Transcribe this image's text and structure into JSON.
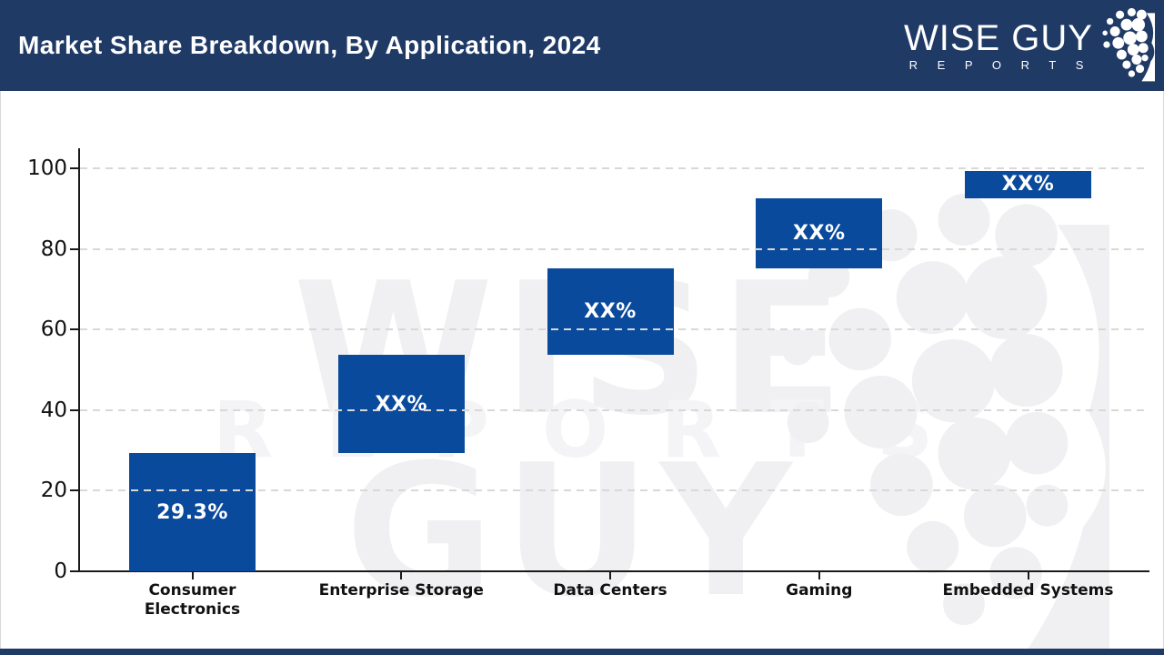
{
  "header": {
    "title": "Market Share Breakdown, By Application, 2024",
    "background_color": "#203a66",
    "logo": {
      "name": "WISE GUY",
      "tagline": "R E P O R T S"
    }
  },
  "watermark": {
    "line1": "WISE GUY",
    "line2": "REPORTS"
  },
  "chart_data": {
    "type": "bar",
    "variant": "waterfall-floating-bars",
    "title": "Market Share Breakdown, By Application, 2024",
    "categories": [
      "Consumer\nElectronics",
      "Enterprise Storage",
      "Data Centers",
      "Gaming",
      "Embedded Systems"
    ],
    "bars": [
      {
        "category": "Consumer Electronics",
        "start": 0,
        "end": 29.3,
        "label": "29.3%"
      },
      {
        "category": "Enterprise Storage",
        "start": 29.3,
        "end": 53.7,
        "label": "XX%"
      },
      {
        "category": "Data Centers",
        "start": 53.7,
        "end": 75.2,
        "label": "XX%"
      },
      {
        "category": "Gaming",
        "start": 75.2,
        "end": 92.6,
        "label": "XX%"
      },
      {
        "category": "Embedded Systems",
        "start": 92.6,
        "end": 99.4,
        "label": "XX%"
      }
    ],
    "yticks": [
      0,
      20,
      40,
      60,
      80,
      100
    ],
    "ylim": [
      0,
      100
    ],
    "xlabel": "",
    "ylabel": "",
    "grid": "horizontal-dashed",
    "grid_color": "#d8d8d8",
    "bar_color": "#0a4a9c",
    "bar_label_color": "#ffffff",
    "axis_color": "#1a1a1a"
  }
}
